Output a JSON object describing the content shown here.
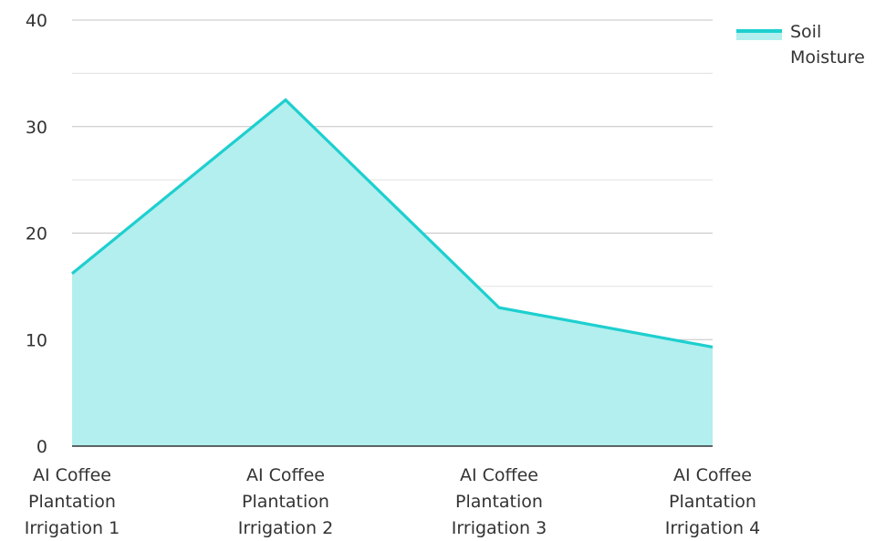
{
  "chart_data": {
    "type": "area",
    "categories": [
      [
        "AI Coffee",
        "Plantation",
        "Irrigation 1"
      ],
      [
        "AI Coffee",
        "Plantation",
        "Irrigation 2"
      ],
      [
        "AI Coffee",
        "Plantation",
        "Irrigation 3"
      ],
      [
        "AI Coffee",
        "Plantation",
        "Irrigation 4"
      ]
    ],
    "series": [
      {
        "name": "Soil Moisture",
        "legend_lines": [
          "Soil",
          "Moisture"
        ],
        "values": [
          16.2,
          32.5,
          13.0,
          9.3
        ],
        "line_color": "#1ecfcf",
        "fill_color": "#b2efee"
      }
    ],
    "ylim": [
      0,
      40
    ],
    "y_ticks": [
      0,
      10,
      20,
      30,
      40
    ],
    "grid": true,
    "gridline_color": "#c8c8c8",
    "axis_color": "#333333",
    "legend_position": "top-right",
    "title": "",
    "xlabel": "",
    "ylabel": ""
  }
}
